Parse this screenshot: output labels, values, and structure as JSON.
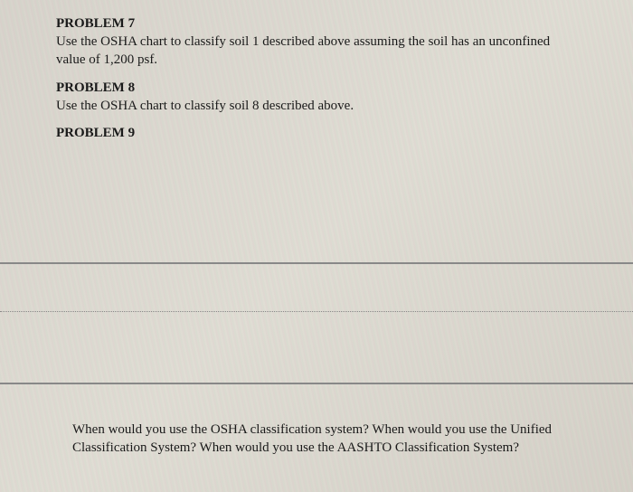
{
  "problems": [
    {
      "heading": "PROBLEM 7",
      "text": "Use the OSHA chart to classify soil 1 described above assuming the soil has an unconfined value of 1,200 psf."
    },
    {
      "heading": "PROBLEM 8",
      "text": "Use the OSHA chart to classify soil 8 described above."
    },
    {
      "heading": "PROBLEM 9",
      "text": ""
    }
  ],
  "bottom_question": "When would you use the OSHA classification system? When would you use the Unified Classification System? When would you use the AASHTO Classification System?",
  "styling": {
    "background_color": "#dcd8cf",
    "text_color": "#1a1a1a",
    "border_color": "#888888",
    "font_family": "Georgia, serif",
    "heading_fontsize": 15,
    "body_fontsize": 15,
    "heading_weight": "bold"
  }
}
